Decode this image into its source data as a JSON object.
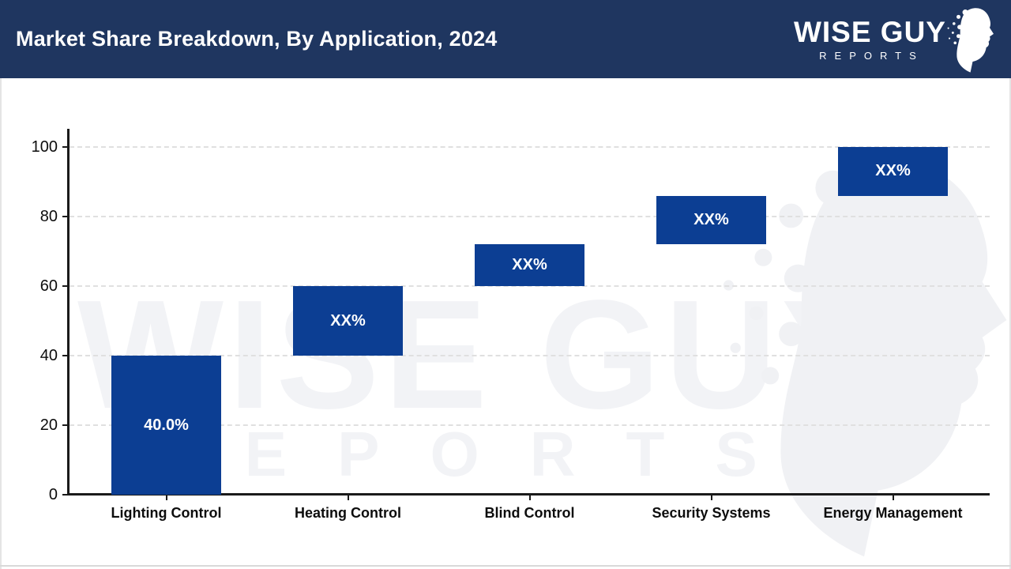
{
  "header": {
    "title": "Market Share Breakdown, By Application, 2024",
    "logo": {
      "wordmark": "WISE GUY",
      "subtext": "REPORTS"
    }
  },
  "watermark": {
    "wordmark": "WISE GUY",
    "subtext": "REPORTS"
  },
  "chart_data": {
    "type": "bar",
    "subtype": "waterfall",
    "title": "Market Share Breakdown, By Application, 2024",
    "categories": [
      "Lighting Control",
      "Heating Control",
      "Blind Control",
      "Security Systems",
      "Energy Management"
    ],
    "segments": [
      {
        "category": "Lighting Control",
        "start": 0,
        "end": 40,
        "label": "40.0%"
      },
      {
        "category": "Heating Control",
        "start": 40,
        "end": 60,
        "label": "XX%"
      },
      {
        "category": "Blind Control",
        "start": 60,
        "end": 72,
        "label": "XX%"
      },
      {
        "category": "Security Systems",
        "start": 72,
        "end": 86,
        "label": "XX%"
      },
      {
        "category": "Energy Management",
        "start": 86,
        "end": 100,
        "label": "XX%"
      }
    ],
    "xlabel": "",
    "ylabel": "",
    "ylim": [
      0,
      100
    ],
    "yticks": [
      0,
      20,
      40,
      60,
      80,
      100
    ],
    "grid": "horizontal-dashed",
    "legend": "none",
    "colors": {
      "bar": "#0c3e93",
      "bar_label": "#ffffff",
      "axis": "#1a1a1a",
      "grid": "#e0e0e0",
      "header_bg": "#1f3660",
      "header_text": "#ffffff",
      "watermark": "#f2f3f6"
    }
  }
}
